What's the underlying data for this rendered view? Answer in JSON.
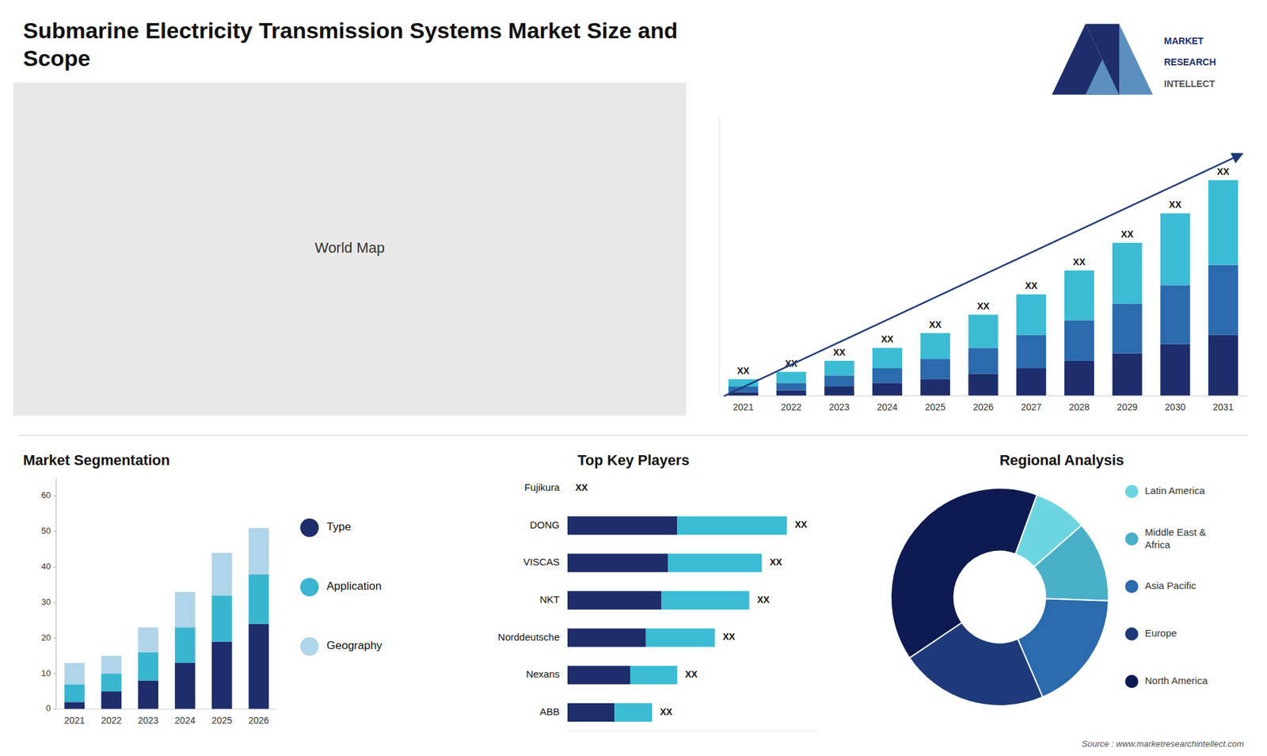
{
  "title": "Submarine Electricity Transmission Systems Market Size and\nScope",
  "annotations": [
    "MARKET",
    "RESEARCH",
    "INTELLECT",
    "World Map",
    "Source : www.marketresearchintellect.com"
  ],
  "chart_data": [
    {
      "type": "bar",
      "stacked": true,
      "categories": [
        "2021",
        "2022",
        "2023",
        "2024",
        "2025",
        "2026",
        "2027",
        "2028",
        "2029",
        "2030",
        "2031"
      ],
      "series": [
        {
          "color": "#1e2d6b",
          "values": [
            2,
            3,
            5,
            7,
            9,
            12,
            15,
            19,
            23,
            28,
            33
          ]
        },
        {
          "color": "#2a6aad",
          "values": [
            3,
            4,
            6,
            8,
            11,
            14,
            18,
            22,
            27,
            32,
            38
          ]
        },
        {
          "color": "#3bbcd4",
          "values": [
            4,
            6,
            8,
            11,
            14,
            18,
            22,
            27,
            33,
            39,
            46
          ]
        }
      ],
      "ylim": [
        0,
        152.1
      ],
      "tick_labels": "x",
      "grid": false,
      "annotations": [
        "XX",
        "XX",
        "XX",
        "XX",
        "XX",
        "XX",
        "XX",
        "XX",
        "XX",
        "XX",
        "XX"
      ]
    },
    {
      "type": "bar",
      "stacked": true,
      "title": "Market Segmentation",
      "categories": [
        "2021",
        "2022",
        "2023",
        "2024",
        "2025",
        "2026"
      ],
      "series": [
        {
          "name": "Type",
          "color": "#1e2d6b",
          "values": [
            2,
            5,
            8,
            13,
            19,
            24
          ]
        },
        {
          "name": "Application",
          "color": "#3ab5d0",
          "values": [
            5,
            5,
            8,
            10,
            13,
            14
          ]
        },
        {
          "name": "Geography",
          "color": "#b0d4e8",
          "values": [
            6,
            5,
            7,
            10,
            12,
            13
          ]
        }
      ],
      "ylim": [
        0,
        65
      ],
      "yticks": [
        0,
        10,
        20,
        30,
        40,
        50,
        60
      ],
      "grid": false,
      "legend": "right"
    },
    {
      "type": "bar",
      "orientation": "horizontal",
      "stacked": true,
      "title": "Top Key Players",
      "categories": [
        "Fujikura",
        "DONG",
        "VISCAS",
        "NKT",
        "Norddeutsche",
        "Nexans",
        "ABB"
      ],
      "series": [
        {
          "color": "#1e2d6b",
          "values": [
            0.0,
            3.5,
            3.2,
            3.0,
            2.5,
            2.0,
            1.5
          ]
        },
        {
          "color": "#3bbcd4",
          "values": [
            0.0,
            3.5,
            3.0,
            2.8,
            2.2,
            1.5,
            1.2
          ]
        }
      ],
      "xlim": [
        0,
        8.0
      ],
      "tick_labels": "y",
      "grid": false,
      "annotations": [
        "XX",
        "XX",
        "XX",
        "XX",
        "XX",
        "XX",
        "XX"
      ]
    },
    {
      "type": "pie",
      "title": "Regional Analysis",
      "categories": [
        "Latin America",
        "Middle East &\nAfrica",
        "Asia Pacific",
        "Europe",
        "North America"
      ],
      "values": [
        8,
        12,
        18,
        22,
        40
      ],
      "colors": [
        "#6dd5e0",
        "#4ab0c8",
        "#2a6aad",
        "#1e3a7a",
        "#0d1b52"
      ],
      "legend": "right"
    }
  ]
}
